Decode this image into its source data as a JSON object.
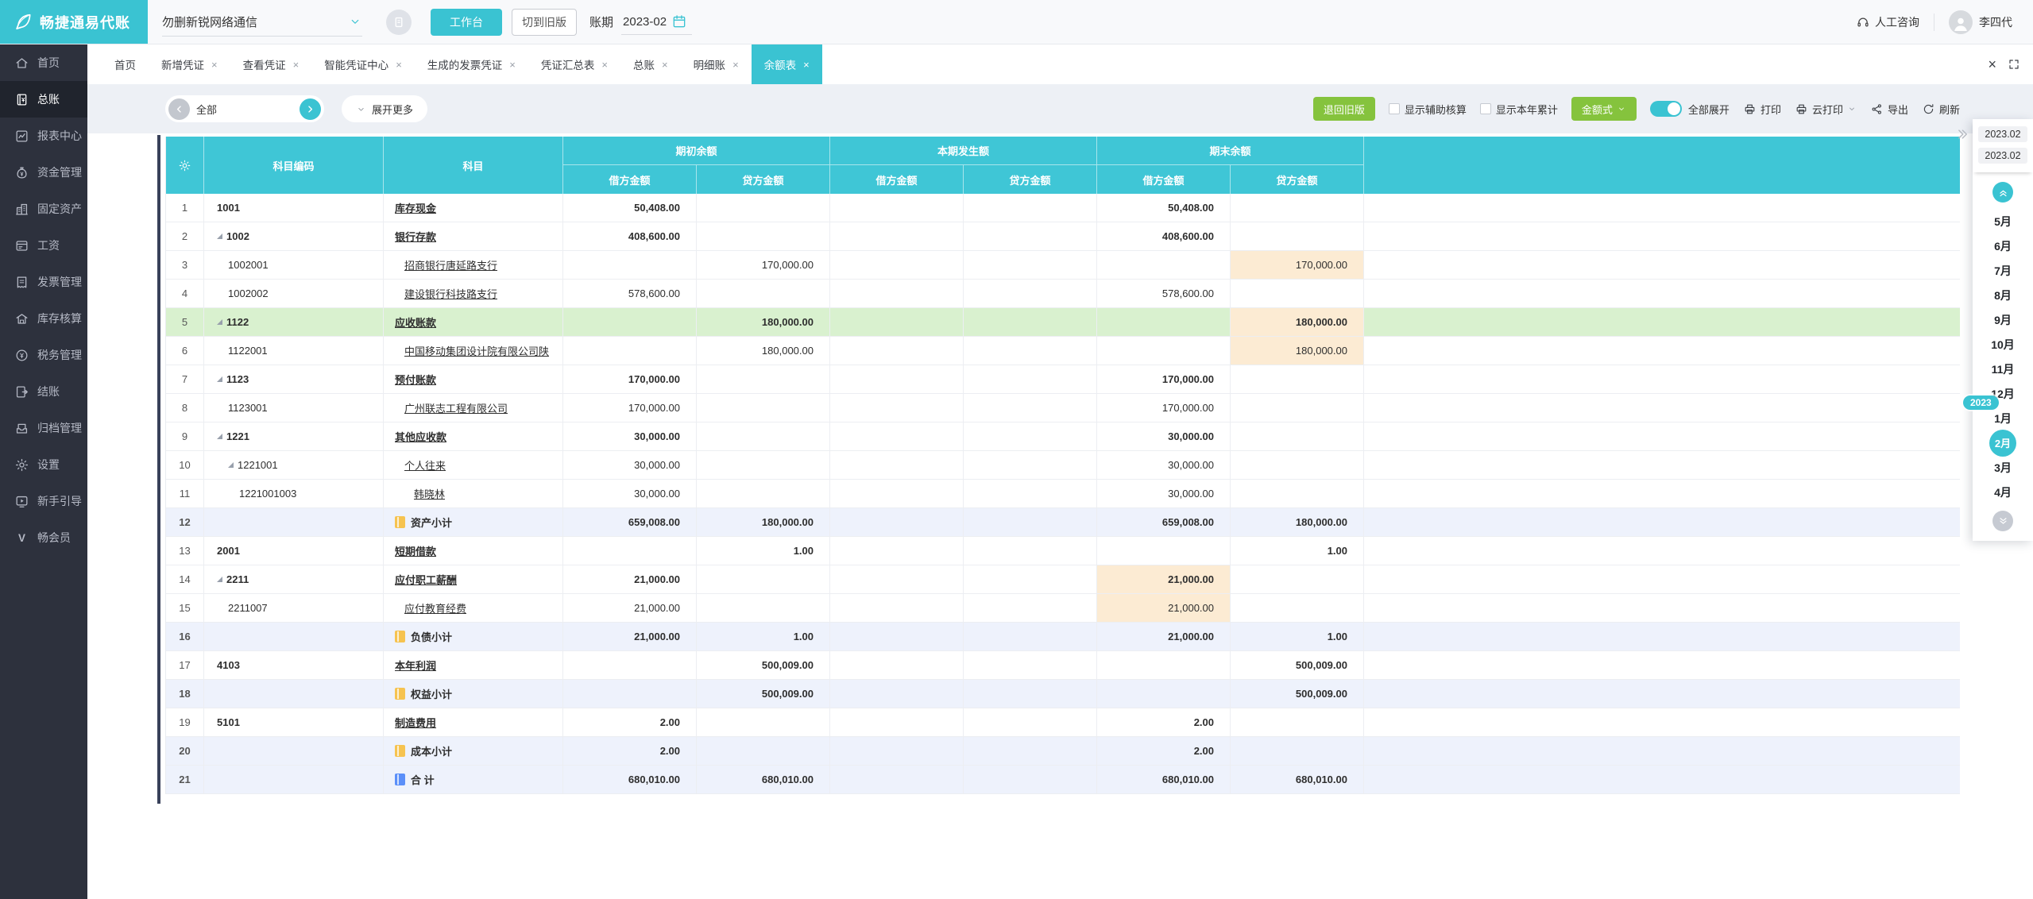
{
  "colors": {
    "accent": "#3ac3d2",
    "green": "#85c33d",
    "header": "#3fc6d6",
    "highlight": "#fcebd3",
    "selected_row": "#d9f1cf",
    "subtotal_row": "#eef2fc"
  },
  "topbar": {
    "logo_text": "畅捷通易代账",
    "company": "勿删新锐网络通信",
    "workbench_btn": "工作台",
    "switch_old_btn": "切到旧版",
    "period_label": "账期",
    "period_value": "2023-02",
    "support_label": "人工咨询",
    "user_name": "李四代"
  },
  "sidebar": {
    "items": [
      {
        "label": "首页",
        "icon": "home",
        "active": false
      },
      {
        "label": "总账",
        "icon": "ledger",
        "active": true
      },
      {
        "label": "报表中心",
        "icon": "report",
        "active": false
      },
      {
        "label": "资金管理",
        "icon": "funds",
        "active": false
      },
      {
        "label": "固定资产",
        "icon": "asset",
        "active": false
      },
      {
        "label": "工资",
        "icon": "salary",
        "active": false
      },
      {
        "label": "发票管理",
        "icon": "invoice",
        "active": false
      },
      {
        "label": "库存核算",
        "icon": "inventory",
        "active": false
      },
      {
        "label": "税务管理",
        "icon": "tax",
        "active": false
      },
      {
        "label": "结账",
        "icon": "closing",
        "active": false
      },
      {
        "label": "归档管理",
        "icon": "archive",
        "active": false
      },
      {
        "label": "设置",
        "icon": "settings",
        "active": false
      },
      {
        "label": "新手引导",
        "icon": "guide",
        "active": false
      },
      {
        "label": "畅会员",
        "icon": "member",
        "active": false
      }
    ]
  },
  "tabbar": {
    "tabs": [
      {
        "label": "首页",
        "closable": false,
        "active": false
      },
      {
        "label": "新增凭证",
        "closable": true,
        "active": false
      },
      {
        "label": "查看凭证",
        "closable": true,
        "active": false
      },
      {
        "label": "智能凭证中心",
        "closable": true,
        "active": false
      },
      {
        "label": "生成的发票凭证",
        "closable": true,
        "active": false
      },
      {
        "label": "凭证汇总表",
        "closable": true,
        "active": false
      },
      {
        "label": "总账",
        "closable": true,
        "active": false
      },
      {
        "label": "明细账",
        "closable": true,
        "active": false
      },
      {
        "label": "余额表",
        "closable": true,
        "active": true
      }
    ]
  },
  "toolbar": {
    "scope": "全部",
    "expand_more": "展开更多",
    "back_old": "退回旧版",
    "show_aux": "显示辅助核算",
    "show_ytd": "显示本年累计",
    "amount_style": "金额式",
    "expand_all": "全部展开",
    "print": "打印",
    "cloud_print": "云打印",
    "export": "导出",
    "refresh": "刷新"
  },
  "table": {
    "headers": {
      "code": "科目编码",
      "subject": "科目",
      "begin": "期初余额",
      "current": "本期发生额",
      "end": "期末余额",
      "debit": "借方金额",
      "credit": "贷方金额"
    },
    "rows": [
      {
        "n": 1,
        "code": "1001",
        "name": "库存现金",
        "lvl": 1,
        "tri": false,
        "bold": true,
        "type": "normal",
        "selected": false,
        "icon": null,
        "a": [
          "50,408.00",
          "",
          "",
          "",
          "50,408.00",
          ""
        ],
        "hl": []
      },
      {
        "n": 2,
        "code": "1002",
        "name": "银行存款",
        "lvl": 1,
        "tri": true,
        "bold": true,
        "type": "normal",
        "selected": false,
        "icon": null,
        "a": [
          "408,600.00",
          "",
          "",
          "",
          "408,600.00",
          ""
        ],
        "hl": []
      },
      {
        "n": 3,
        "code": "1002001",
        "name": "招商银行唐延路支行",
        "lvl": 2,
        "tri": false,
        "bold": false,
        "type": "normal",
        "selected": false,
        "icon": null,
        "a": [
          "",
          "170,000.00",
          "",
          "",
          "",
          "170,000.00"
        ],
        "hl": [
          5
        ]
      },
      {
        "n": 4,
        "code": "1002002",
        "name": "建设银行科技路支行",
        "lvl": 2,
        "tri": false,
        "bold": false,
        "type": "normal",
        "selected": false,
        "icon": null,
        "a": [
          "578,600.00",
          "",
          "",
          "",
          "578,600.00",
          ""
        ],
        "hl": []
      },
      {
        "n": 5,
        "code": "1122",
        "name": "应收账款",
        "lvl": 1,
        "tri": true,
        "bold": true,
        "type": "normal",
        "selected": true,
        "icon": null,
        "a": [
          "",
          "180,000.00",
          "",
          "",
          "",
          "180,000.00"
        ],
        "hl": [
          5
        ]
      },
      {
        "n": 6,
        "code": "1122001",
        "name": "中国移动集团设计院有限公司陕",
        "lvl": 2,
        "tri": false,
        "bold": false,
        "type": "normal",
        "selected": false,
        "icon": null,
        "a": [
          "",
          "180,000.00",
          "",
          "",
          "",
          "180,000.00"
        ],
        "hl": [
          5
        ]
      },
      {
        "n": 7,
        "code": "1123",
        "name": "预付账款",
        "lvl": 1,
        "tri": true,
        "bold": true,
        "type": "normal",
        "selected": false,
        "icon": null,
        "a": [
          "170,000.00",
          "",
          "",
          "",
          "170,000.00",
          ""
        ],
        "hl": []
      },
      {
        "n": 8,
        "code": "1123001",
        "name": "广州联志工程有限公司",
        "lvl": 2,
        "tri": false,
        "bold": false,
        "type": "normal",
        "selected": false,
        "icon": null,
        "a": [
          "170,000.00",
          "",
          "",
          "",
          "170,000.00",
          ""
        ],
        "hl": []
      },
      {
        "n": 9,
        "code": "1221",
        "name": "其他应收款",
        "lvl": 1,
        "tri": true,
        "bold": true,
        "type": "normal",
        "selected": false,
        "icon": null,
        "a": [
          "30,000.00",
          "",
          "",
          "",
          "30,000.00",
          ""
        ],
        "hl": []
      },
      {
        "n": 10,
        "code": "1221001",
        "name": "个人往来",
        "lvl": 2,
        "tri": true,
        "bold": false,
        "type": "normal",
        "selected": false,
        "icon": null,
        "a": [
          "30,000.00",
          "",
          "",
          "",
          "30,000.00",
          ""
        ],
        "hl": []
      },
      {
        "n": 11,
        "code": "1221001003",
        "name": "韩晓林",
        "lvl": 3,
        "tri": false,
        "bold": false,
        "type": "normal",
        "selected": false,
        "icon": null,
        "a": [
          "30,000.00",
          "",
          "",
          "",
          "30,000.00",
          ""
        ],
        "hl": []
      },
      {
        "n": 12,
        "code": "",
        "name": "资产小计",
        "lvl": 1,
        "tri": false,
        "bold": true,
        "type": "subtotal",
        "selected": false,
        "icon": "yellow",
        "a": [
          "659,008.00",
          "180,000.00",
          "",
          "",
          "659,008.00",
          "180,000.00"
        ],
        "hl": []
      },
      {
        "n": 13,
        "code": "2001",
        "name": "短期借款",
        "lvl": 1,
        "tri": false,
        "bold": true,
        "type": "normal",
        "selected": false,
        "icon": null,
        "a": [
          "",
          "1.00",
          "",
          "",
          "",
          "1.00"
        ],
        "hl": []
      },
      {
        "n": 14,
        "code": "2211",
        "name": "应付职工薪酬",
        "lvl": 1,
        "tri": true,
        "bold": true,
        "type": "normal",
        "selected": false,
        "icon": null,
        "a": [
          "21,000.00",
          "",
          "",
          "",
          "21,000.00",
          ""
        ],
        "hl": [
          4
        ]
      },
      {
        "n": 15,
        "code": "2211007",
        "name": "应付教育经费",
        "lvl": 2,
        "tri": false,
        "bold": false,
        "type": "normal",
        "selected": false,
        "icon": null,
        "a": [
          "21,000.00",
          "",
          "",
          "",
          "21,000.00",
          ""
        ],
        "hl": [
          4
        ]
      },
      {
        "n": 16,
        "code": "",
        "name": "负债小计",
        "lvl": 1,
        "tri": false,
        "bold": true,
        "type": "subtotal",
        "selected": false,
        "icon": "yellow",
        "a": [
          "21,000.00",
          "1.00",
          "",
          "",
          "21,000.00",
          "1.00"
        ],
        "hl": []
      },
      {
        "n": 17,
        "code": "4103",
        "name": "本年利润",
        "lvl": 1,
        "tri": false,
        "bold": true,
        "type": "normal",
        "selected": false,
        "icon": null,
        "a": [
          "",
          "500,009.00",
          "",
          "",
          "",
          "500,009.00"
        ],
        "hl": []
      },
      {
        "n": 18,
        "code": "",
        "name": "权益小计",
        "lvl": 1,
        "tri": false,
        "bold": true,
        "type": "subtotal",
        "selected": false,
        "icon": "yellow",
        "a": [
          "",
          "500,009.00",
          "",
          "",
          "",
          "500,009.00"
        ],
        "hl": []
      },
      {
        "n": 19,
        "code": "5101",
        "name": "制造费用",
        "lvl": 1,
        "tri": false,
        "bold": true,
        "type": "normal",
        "selected": false,
        "icon": null,
        "a": [
          "2.00",
          "",
          "",
          "",
          "2.00",
          ""
        ],
        "hl": []
      },
      {
        "n": 20,
        "code": "",
        "name": "成本小计",
        "lvl": 1,
        "tri": false,
        "bold": true,
        "type": "subtotal",
        "selected": false,
        "icon": "yellow",
        "a": [
          "2.00",
          "",
          "",
          "",
          "2.00",
          ""
        ],
        "hl": []
      },
      {
        "n": 21,
        "code": "",
        "name": "合 计",
        "lvl": 1,
        "tri": false,
        "bold": true,
        "type": "total",
        "selected": false,
        "icon": "blue",
        "a": [
          "680,010.00",
          "680,010.00",
          "",
          "",
          "680,010.00",
          "680,010.00"
        ],
        "hl": []
      }
    ]
  },
  "month_panel": {
    "period_chips": [
      "2023.02",
      "2023.02"
    ],
    "months": [
      "5月",
      "6月",
      "7月",
      "8月",
      "9月",
      "10月",
      "11月",
      "12月",
      "1月",
      "2月",
      "3月",
      "4月"
    ],
    "active_month": "2月",
    "year_badge": "2023"
  }
}
